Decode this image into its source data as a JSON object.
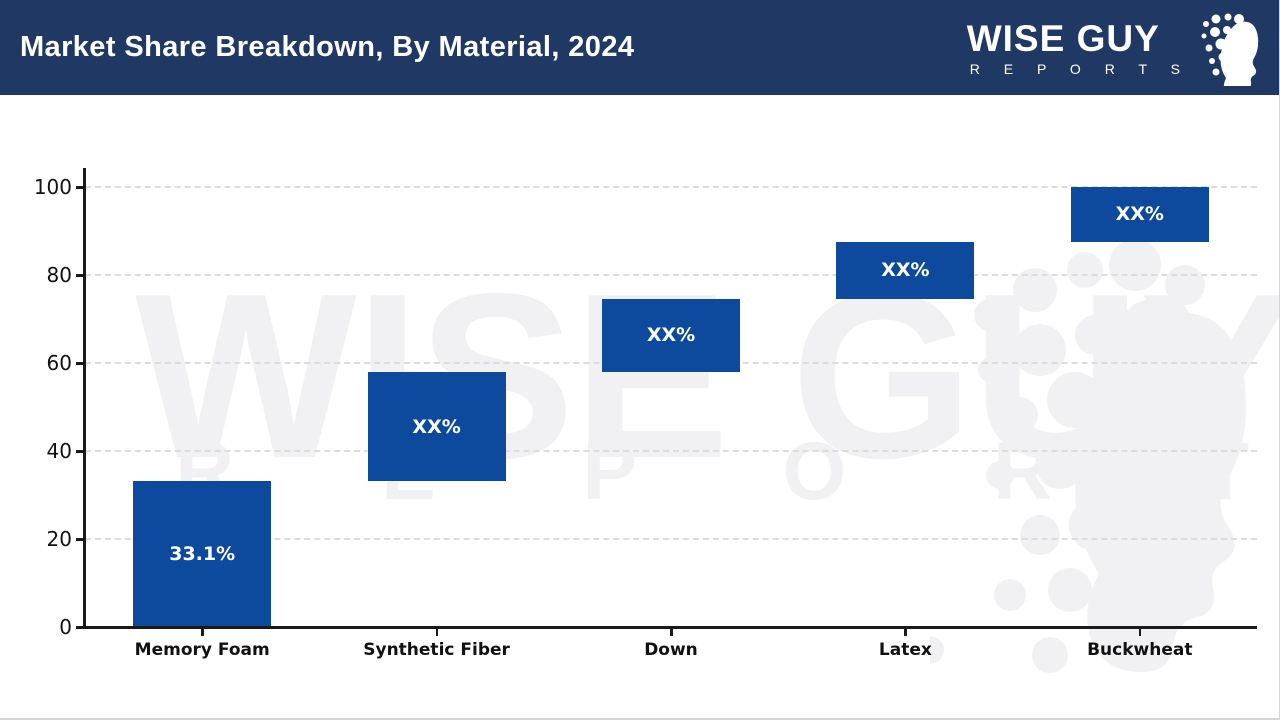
{
  "header": {
    "title": "Market Share Breakdown, By Material, 2024",
    "background_color": "#203864",
    "logo": {
      "line1": "WISE GUY",
      "line2": "R E P O R T S"
    }
  },
  "watermark": {
    "line1": "WISE GUY",
    "line2": "R E P O R T S"
  },
  "chart_data": {
    "type": "bar",
    "subtype": "waterfall",
    "title": "Market Share Breakdown, By Material, 2024",
    "categories": [
      "Memory Foam",
      "Synthetic Fiber",
      "Down",
      "Latex",
      "Buckwheat"
    ],
    "segments": [
      {
        "category": "Memory Foam",
        "start": 0,
        "end": 33.1,
        "label": "33.1%"
      },
      {
        "category": "Synthetic Fiber",
        "start": 33.1,
        "end": 57.9,
        "label": "XX%"
      },
      {
        "category": "Down",
        "start": 57.9,
        "end": 74.6,
        "label": "XX%"
      },
      {
        "category": "Latex",
        "start": 74.6,
        "end": 87.6,
        "label": "XX%"
      },
      {
        "category": "Buckwheat",
        "start": 87.6,
        "end": 100,
        "label": "XX%"
      }
    ],
    "xlabel": "",
    "ylabel": "",
    "ylim": [
      0,
      100
    ],
    "yticks": [
      0,
      20,
      40,
      60,
      80,
      100
    ],
    "grid": "horizontal-dashed",
    "legend": "none",
    "bar_color": "#0d4a9e",
    "bar_label_color": "#ffffff",
    "axis_color": "#1a1a1a",
    "gridline_color": "#dcdcdc"
  }
}
